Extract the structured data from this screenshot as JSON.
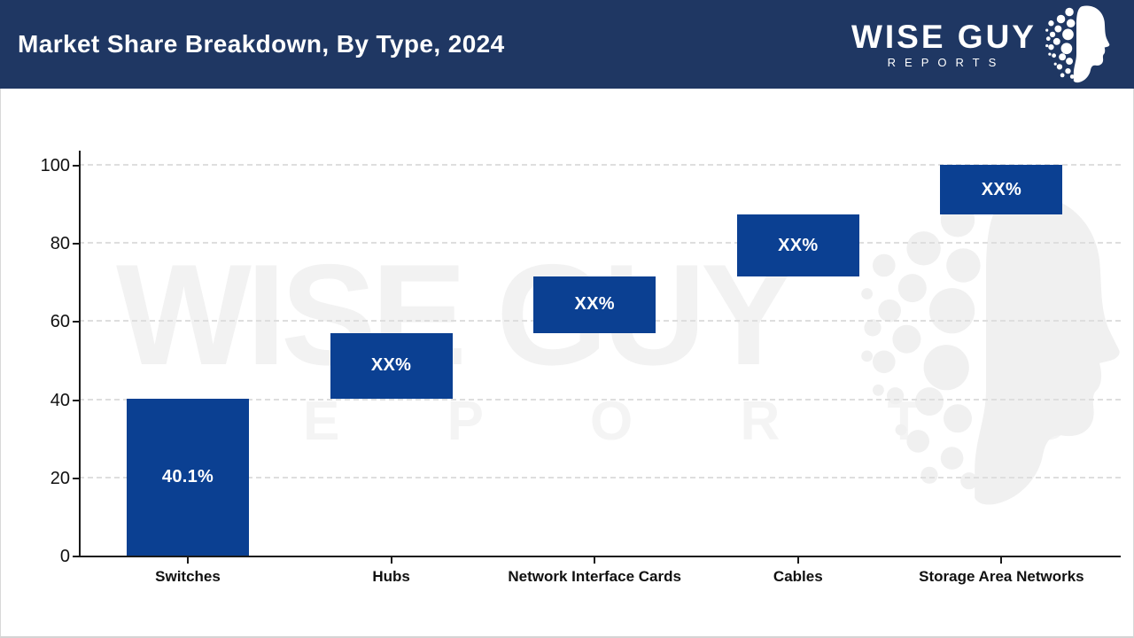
{
  "header": {
    "title": "Market Share Breakdown, By Type, 2024",
    "logo": {
      "line1": "WISE GUY",
      "line2": "REPORTS"
    }
  },
  "watermark": {
    "line1": "WISE GUY",
    "line2": "R E P O R T S"
  },
  "colors": {
    "header_bg": "#1f3763",
    "bar": "#0b4092",
    "grid": "#dedede",
    "axis": "#1a1a1a",
    "bar_label": "#ffffff",
    "watermark": "#f2f2f2"
  },
  "chart_data": {
    "type": "bar",
    "subtype": "waterfall",
    "title": "Market Share Breakdown, By Type, 2024",
    "xlabel": "",
    "ylabel": "",
    "ylim": [
      0,
      100
    ],
    "yticks": [
      0,
      20,
      40,
      60,
      80,
      100
    ],
    "grid": "dashed-horizontal",
    "legend": "none",
    "categories": [
      "Switches",
      "Hubs",
      "Network Interface Cards",
      "Cables",
      "Storage Area Networks"
    ],
    "segments": [
      {
        "category": "Switches",
        "start": 0,
        "end": 40.1,
        "label": "40.1%"
      },
      {
        "category": "Hubs",
        "start": 40.1,
        "end": 57.0,
        "label": "XX%"
      },
      {
        "category": "Network Interface Cards",
        "start": 57.0,
        "end": 71.4,
        "label": "XX%"
      },
      {
        "category": "Cables",
        "start": 71.4,
        "end": 87.2,
        "label": "XX%"
      },
      {
        "category": "Storage Area Networks",
        "start": 87.2,
        "end": 100,
        "label": "XX%"
      }
    ]
  }
}
